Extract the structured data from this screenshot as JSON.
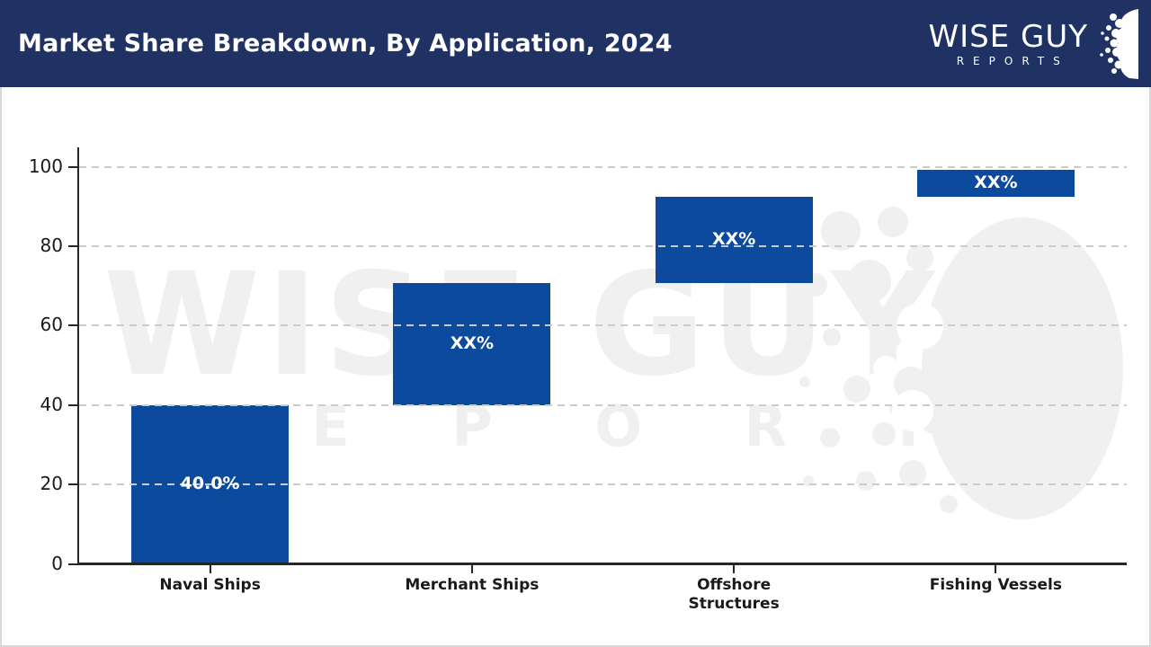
{
  "header": {
    "title": "Market Share Breakdown, By Application, 2024",
    "logo_line1": "WISE GUY",
    "logo_line2": "REPORTS",
    "bg_color": "#203264"
  },
  "watermark": {
    "line1": "WISE GUY",
    "line2": "REPORTS",
    "color": "#f0f0f0"
  },
  "chart_data": {
    "type": "bar",
    "subtype": "waterfall",
    "title": "Market Share Breakdown, By Application, 2024",
    "categories": [
      "Naval Ships",
      "Merchant Ships",
      "Offshore Structures",
      "Fishing Vessels"
    ],
    "category_label_lines": [
      [
        "Naval Ships"
      ],
      [
        "Merchant Ships"
      ],
      [
        "Offshore",
        "Structures"
      ],
      [
        "Fishing Vessels"
      ]
    ],
    "segments": [
      {
        "category": "Naval Ships",
        "start": 0,
        "end": 40.0,
        "label": "40.0%"
      },
      {
        "category": "Merchant Ships",
        "start": 40.0,
        "end": 70.7,
        "label": "XX%"
      },
      {
        "category": "Offshore Structures",
        "start": 70.7,
        "end": 92.4,
        "label": "XX%"
      },
      {
        "category": "Fishing Vessels",
        "start": 92.4,
        "end": 99.3,
        "label": "XX%"
      }
    ],
    "y_ticks": [
      0,
      20,
      40,
      60,
      80,
      100
    ],
    "ylim": [
      0,
      105
    ],
    "xlabel": "",
    "ylabel": "",
    "grid": "horizontal-dashed",
    "bar_color": "#0c4a9e",
    "value_label_color": "#ffffff",
    "legend": "none"
  }
}
